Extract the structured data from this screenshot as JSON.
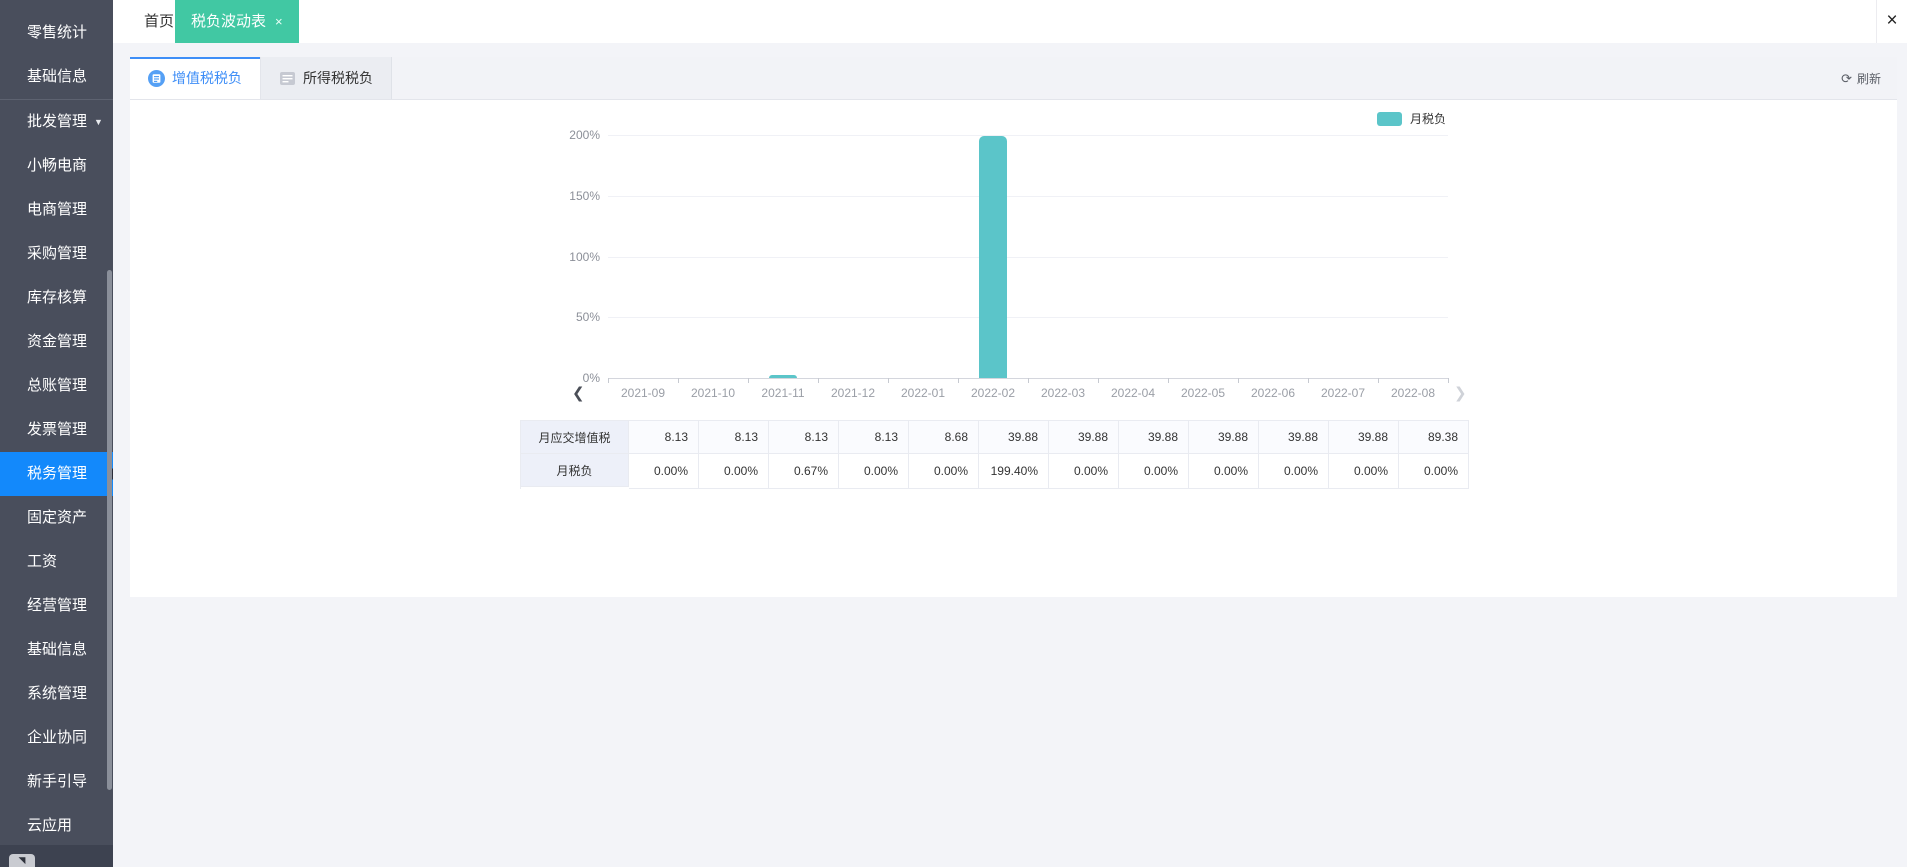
{
  "colors": {
    "sidebar_bg": "#494e5c",
    "active_blue": "#1389fb",
    "tab_green": "#41c8a3",
    "bar_teal": "#5bc5c9",
    "link_blue": "#3e8ef7"
  },
  "icons": {
    "window_close": "×",
    "tab_close": "×",
    "refresh": "⟳",
    "dropdown_caret": "▼",
    "pager_prev": "❮",
    "pager_next": "❯"
  },
  "sidebar": {
    "items": [
      {
        "label": "零售统计",
        "active": false,
        "caret": false,
        "divider_after": false
      },
      {
        "label": "基础信息",
        "active": false,
        "caret": false,
        "divider_after": true
      },
      {
        "label": "批发管理",
        "active": false,
        "caret": true,
        "divider_after": false
      },
      {
        "label": "小畅电商",
        "active": false,
        "caret": false,
        "divider_after": false
      },
      {
        "label": "电商管理",
        "active": false,
        "caret": false,
        "divider_after": false
      },
      {
        "label": "采购管理",
        "active": false,
        "caret": false,
        "divider_after": false
      },
      {
        "label": "库存核算",
        "active": false,
        "caret": false,
        "divider_after": false
      },
      {
        "label": "资金管理",
        "active": false,
        "caret": false,
        "divider_after": false
      },
      {
        "label": "总账管理",
        "active": false,
        "caret": false,
        "divider_after": false
      },
      {
        "label": "发票管理",
        "active": false,
        "caret": false,
        "divider_after": false
      },
      {
        "label": "税务管理",
        "active": true,
        "caret": false,
        "divider_after": false
      },
      {
        "label": "固定资产",
        "active": false,
        "caret": false,
        "divider_after": false
      },
      {
        "label": "工资",
        "active": false,
        "caret": false,
        "divider_after": false
      },
      {
        "label": "经营管理",
        "active": false,
        "caret": false,
        "divider_after": false
      },
      {
        "label": "基础信息",
        "active": false,
        "caret": false,
        "divider_after": false
      },
      {
        "label": "系统管理",
        "active": false,
        "caret": false,
        "divider_after": false
      },
      {
        "label": "企业协同",
        "active": false,
        "caret": false,
        "divider_after": false
      },
      {
        "label": "新手引导",
        "active": false,
        "caret": false,
        "divider_after": false
      },
      {
        "label": "云应用",
        "active": false,
        "caret": false,
        "divider_after": false
      }
    ]
  },
  "topbar": {
    "home_label": "首页",
    "active_tab_label": "税负波动表"
  },
  "content_tabs": {
    "tab1_label": "增值税税负",
    "tab2_label": "所得税税负",
    "refresh_label": "刷新"
  },
  "chart_data": {
    "type": "bar",
    "title": "",
    "legend": [
      "月税负"
    ],
    "legend_position": "top-right",
    "categories": [
      "2021-09",
      "2021-10",
      "2021-11",
      "2021-12",
      "2022-01",
      "2022-02",
      "2022-03",
      "2022-04",
      "2022-05",
      "2022-06",
      "2022-07",
      "2022-08"
    ],
    "series": [
      {
        "name": "月税负",
        "values": [
          0,
          0,
          0.67,
          0,
          0,
          199.4,
          0,
          0,
          0,
          0,
          0,
          0
        ],
        "unit": "%"
      }
    ],
    "ylabel": "",
    "xlabel": "",
    "ylim": [
      0,
      200
    ],
    "yticks": [
      0,
      50,
      100,
      150,
      200
    ],
    "ytick_suffix": "%",
    "grid": true,
    "bar_color": "#5bc5c9",
    "pager_arrows": true
  },
  "table": {
    "rows": [
      {
        "header": "月应交增值税",
        "values": [
          "8.13",
          "8.13",
          "8.13",
          "8.13",
          "8.68",
          "39.88",
          "39.88",
          "39.88",
          "39.88",
          "39.88",
          "39.88",
          "89.38"
        ]
      },
      {
        "header": "月税负",
        "values": [
          "0.00%",
          "0.00%",
          "0.67%",
          "0.00%",
          "0.00%",
          "199.40%",
          "0.00%",
          "0.00%",
          "0.00%",
          "0.00%",
          "0.00%",
          "0.00%"
        ]
      }
    ]
  }
}
